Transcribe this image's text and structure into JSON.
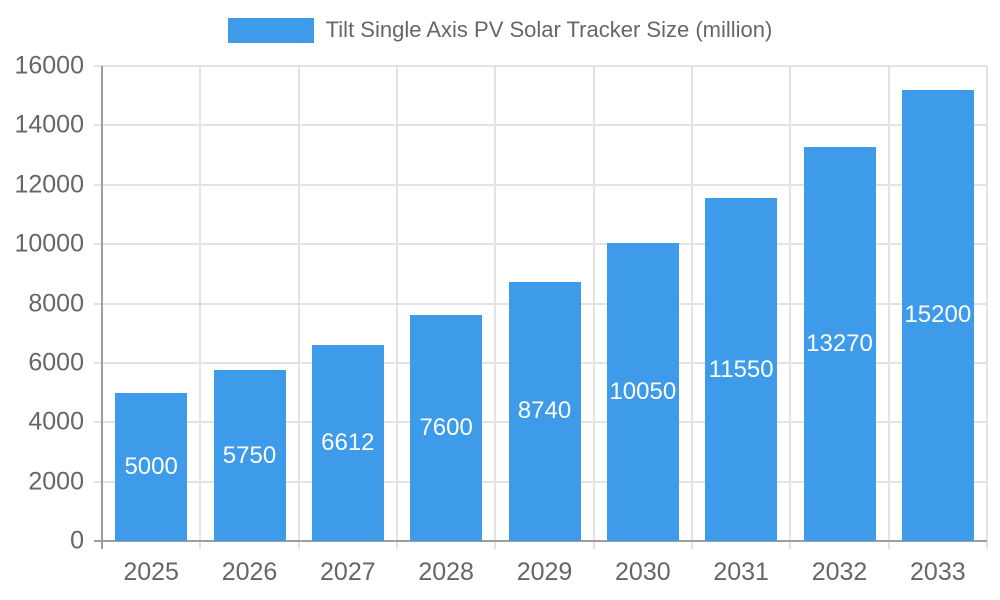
{
  "legend": {
    "label": "Tilt Single Axis PV Solar Tracker Size (million)"
  },
  "colors": {
    "bar": "#3E9BEA",
    "grid": "#E3E3E3",
    "axis": "#9E9E9E",
    "tick_text": "#666666",
    "bar_label_text": "#FFFFFF"
  },
  "chart_data": {
    "type": "bar",
    "title": "Tilt Single Axis PV Solar Tracker Size (million)",
    "categories": [
      "2025",
      "2026",
      "2027",
      "2028",
      "2029",
      "2030",
      "2031",
      "2032",
      "2033"
    ],
    "values": [
      5000,
      5750,
      6612,
      7600,
      8740,
      10050,
      11550,
      13270,
      15200
    ],
    "data_labels": [
      "5000",
      "5750",
      "6612",
      "7600",
      "8740",
      "10050",
      "11550",
      "13270",
      "15200"
    ],
    "xlabel": "",
    "ylabel": "",
    "ylim": [
      0,
      16000
    ],
    "ytick_step": 2000,
    "ytick_labels": [
      "0",
      "2000",
      "4000",
      "6000",
      "8000",
      "10000",
      "12000",
      "14000",
      "16000"
    ],
    "grid": true,
    "legend_position": "top",
    "bar_labels_position": "inside-center"
  }
}
